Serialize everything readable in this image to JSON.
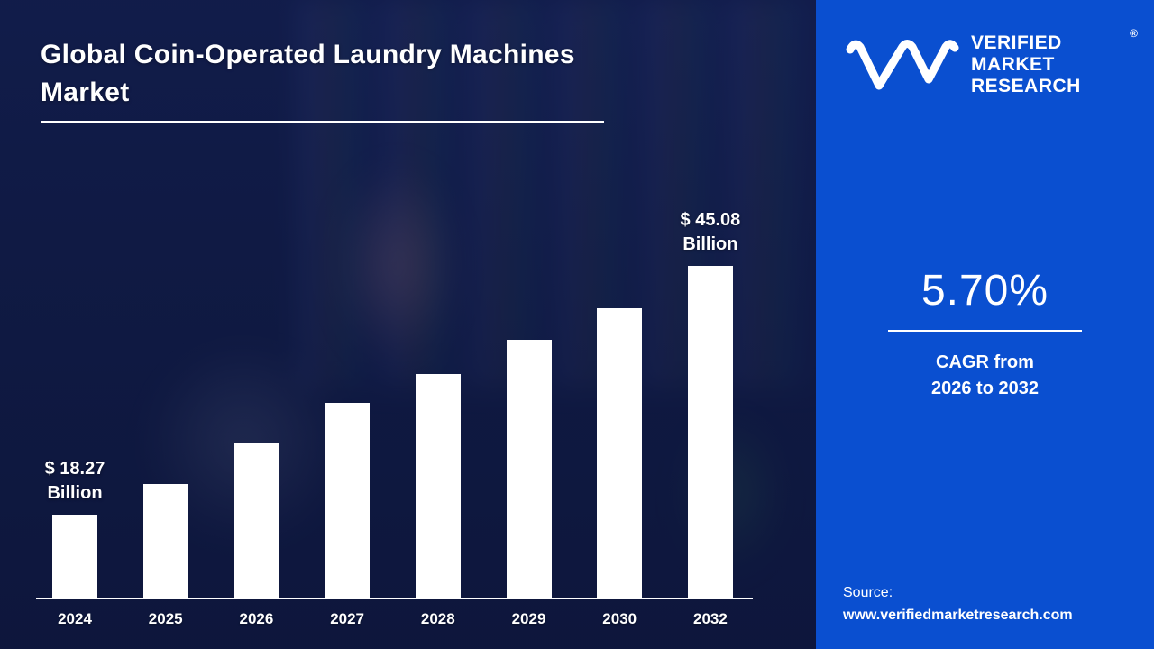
{
  "title": "Global Coin-Operated Laundry Machines Market",
  "brand": {
    "lines": [
      "VERIFIED",
      "MARKET",
      "RESEARCH"
    ],
    "registered": "®"
  },
  "stats": {
    "cagr_value": "5.70%",
    "cagr_caption_line1": "CAGR from",
    "cagr_caption_line2": "2026 to 2032"
  },
  "source": {
    "label": "Source:",
    "url": "www.verifiedmarketresearch.com"
  },
  "colors": {
    "left_background": "#131f4d",
    "right_panel": "#0a4fd0",
    "bar": "#ffffff",
    "text": "#ffffff"
  },
  "chart_data": {
    "type": "bar",
    "title": "Global Coin-Operated Laundry Machines Market",
    "categories": [
      "2024",
      "2025",
      "2026",
      "2027",
      "2028",
      "2029",
      "2030",
      "2032"
    ],
    "values": [
      18.27,
      21.6,
      25.9,
      30.3,
      33.4,
      37.1,
      40.5,
      45.08
    ],
    "unit": "USD Billion",
    "ylim": [
      0,
      50
    ],
    "grid": false,
    "legend": "none",
    "bar_color": "#ffffff",
    "annotations": [
      {
        "index": 0,
        "line1": "$ 18.27",
        "line2": "Billion"
      },
      {
        "index": 7,
        "line1": "$ 45.08",
        "line2": "Billion"
      }
    ]
  }
}
